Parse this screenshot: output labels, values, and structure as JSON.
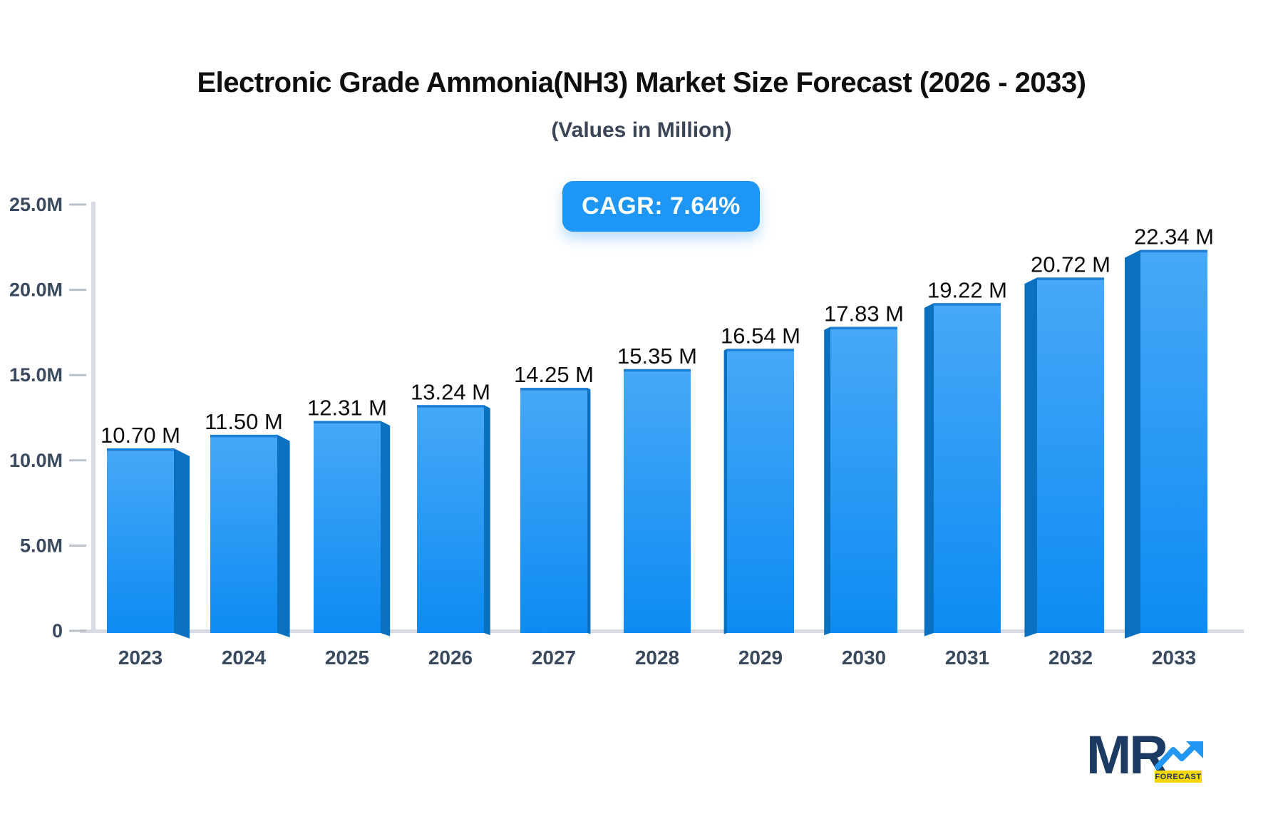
{
  "header": {
    "title": "Electronic Grade Ammonia(NH3) Market Size Forecast (2026 - 2033)",
    "subtitle": "(Values in Million)"
  },
  "badge": {
    "label": "CAGR: 7.64%"
  },
  "chart_data": {
    "type": "bar",
    "title": "Electronic Grade Ammonia(NH3) Market Size Forecast (2026 - 2033)",
    "subtitle": "(Values in Million)",
    "cagr": "7.64%",
    "categories": [
      "2023",
      "2024",
      "2025",
      "2026",
      "2027",
      "2028",
      "2029",
      "2030",
      "2031",
      "2032",
      "2033"
    ],
    "values": [
      10.7,
      11.5,
      12.31,
      13.24,
      14.25,
      15.35,
      16.54,
      17.83,
      19.22,
      20.72,
      22.34
    ],
    "value_labels": [
      "10.70 M",
      "11.50 M",
      "12.31 M",
      "13.24 M",
      "14.25 M",
      "15.35 M",
      "16.54 M",
      "17.83 M",
      "19.22 M",
      "20.72 M",
      "22.34 M"
    ],
    "y_ticks": [
      "0",
      "5.0M",
      "10.0M",
      "15.0M",
      "20.0M",
      "25.0M"
    ],
    "ylim": [
      0,
      25
    ],
    "unit": "Million",
    "legend": "none",
    "grid": "off",
    "colors": {
      "bar_top": "#47a8f7",
      "bar_bottom": "#0d8bf2",
      "bar_side": "#0a70c0",
      "bar_top_edge": "#1d7fd6",
      "axis_line": "#d9dbe2",
      "tick_mark": "#b9c0ca",
      "tick_label": "#394a5f",
      "value_label": "#0b0b0c",
      "badge_bg": "#1e96f6"
    }
  },
  "logo": {
    "mr": "MR",
    "forecast": "FORECAST"
  }
}
